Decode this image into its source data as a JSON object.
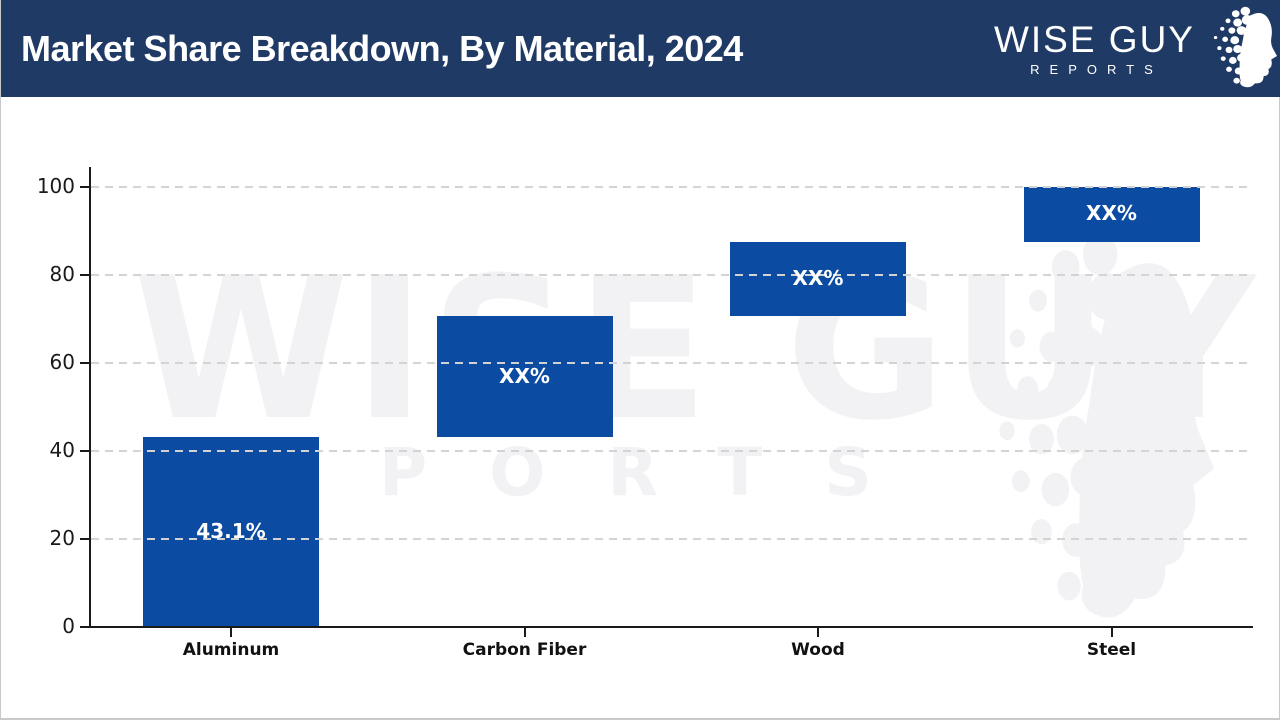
{
  "header": {
    "title": "Market Share Breakdown, By Material, 2024",
    "logo": {
      "line1": "WISE GUY",
      "line2": "REPORTS"
    }
  },
  "watermark": {
    "line1": "WISE GUY",
    "line2": "REPORTS"
  },
  "colors": {
    "header_bg": "#203a66",
    "bar": "#0b4ba1",
    "grid": "#d3d3d3",
    "axis": "#1a1a1a",
    "watermark": "#f2f2f4",
    "title_text": "#ffffff",
    "bar_label_text": "#ffffff"
  },
  "chart_data": {
    "type": "bar",
    "subtype": "waterfall",
    "title": "Market Share Breakdown, By Material, 2024",
    "categories": [
      "Aluminum",
      "Carbon Fiber",
      "Wood",
      "Steel"
    ],
    "segments": [
      {
        "category": "Aluminum",
        "start": 0,
        "end": 43.1,
        "label": "43.1%"
      },
      {
        "category": "Carbon Fiber",
        "start": 43.1,
        "end": 70.6,
        "label": "XX%"
      },
      {
        "category": "Wood",
        "start": 70.6,
        "end": 87.6,
        "label": "XX%"
      },
      {
        "category": "Steel",
        "start": 87.6,
        "end": 100,
        "label": "XX%"
      }
    ],
    "yticks": [
      0,
      20,
      40,
      60,
      80,
      100
    ],
    "ylim": [
      0,
      104.5
    ],
    "xlabel": "",
    "ylabel": "",
    "grid": "horizontal-dashed",
    "legend": "none"
  }
}
